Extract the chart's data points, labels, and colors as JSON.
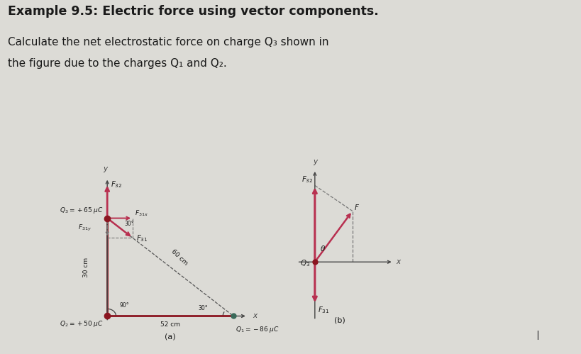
{
  "title": "Example 9.5: Electric force using vector components.",
  "subtitle_line1": "Calculate the net electrostatic force on charge Q₃ shown in",
  "subtitle_line2": "the figure due to the charges Q₁ and Q₂.",
  "bg_color": "#dcdbd6",
  "text_color": "#1a1a1a",
  "arrow_color": "#b83050",
  "dark_line_color": "#8b1520",
  "axis_color": "#444444",
  "dashed_color": "#777777",
  "dot_color_q13": "#8b1520",
  "dot_color_q1": "#3a6a5a",
  "title_fontsize": 12.5,
  "subtitle_fontsize": 11.0,
  "label_fontsize": 7.5,
  "small_fontsize": 6.5
}
